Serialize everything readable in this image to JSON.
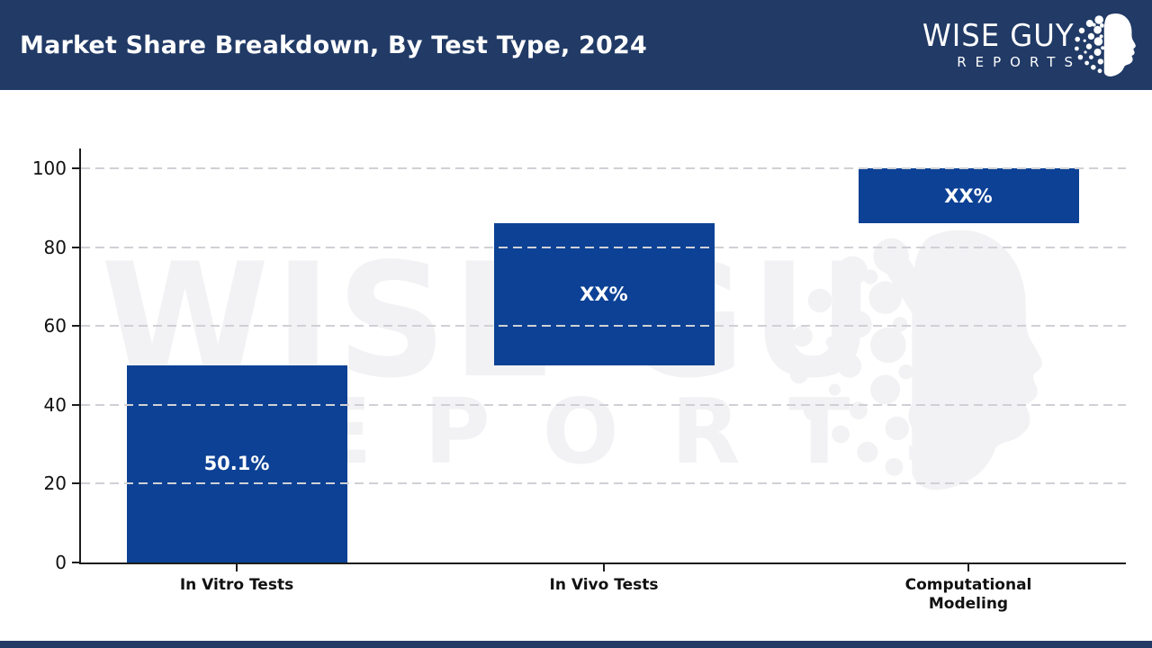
{
  "header": {
    "title": "Market Share Breakdown, By Test Type, 2024",
    "logo": {
      "alt": "WISE GUY REPORTS",
      "line1": "WISE GUY",
      "line2": "REPORTS"
    }
  },
  "watermark": {
    "line1": "WISE GUY",
    "line2": "REPORTS"
  },
  "colors": {
    "header_bg": "#213a66",
    "footer_bg": "#213a66",
    "bar": "#0c4195",
    "bar_label": "#ffffff",
    "gridline": "#cfd1d6",
    "axis": "#1c1c1c",
    "tick_label": "#111111",
    "watermark": "#f2f2f4"
  },
  "chart_data": {
    "type": "bar",
    "subtype": "waterfall",
    "title": "Market Share Breakdown, By Test Type, 2024",
    "categories": [
      "In Vitro Tests",
      "In Vivo Tests",
      "Computational Modeling"
    ],
    "series": [
      {
        "name": "Market Share %",
        "segments": [
          {
            "category": "In Vitro Tests",
            "start": 0,
            "end": 50.1,
            "label": "50.1%"
          },
          {
            "category": "In Vivo Tests",
            "start": 50.1,
            "end": 86,
            "label": "XX%"
          },
          {
            "category": "Computational Modeling",
            "start": 86,
            "end": 100,
            "label": "XX%"
          }
        ],
        "values": [
          50.1,
          35.9,
          14.0
        ]
      }
    ],
    "xlabel": "",
    "ylabel": "",
    "ylim": [
      0,
      100
    ],
    "yticks": [
      0,
      20,
      40,
      60,
      80,
      100
    ],
    "grid": "horizontal-dashed-on-top",
    "legend": "none",
    "bar_value_labels_masked": "XX%"
  }
}
